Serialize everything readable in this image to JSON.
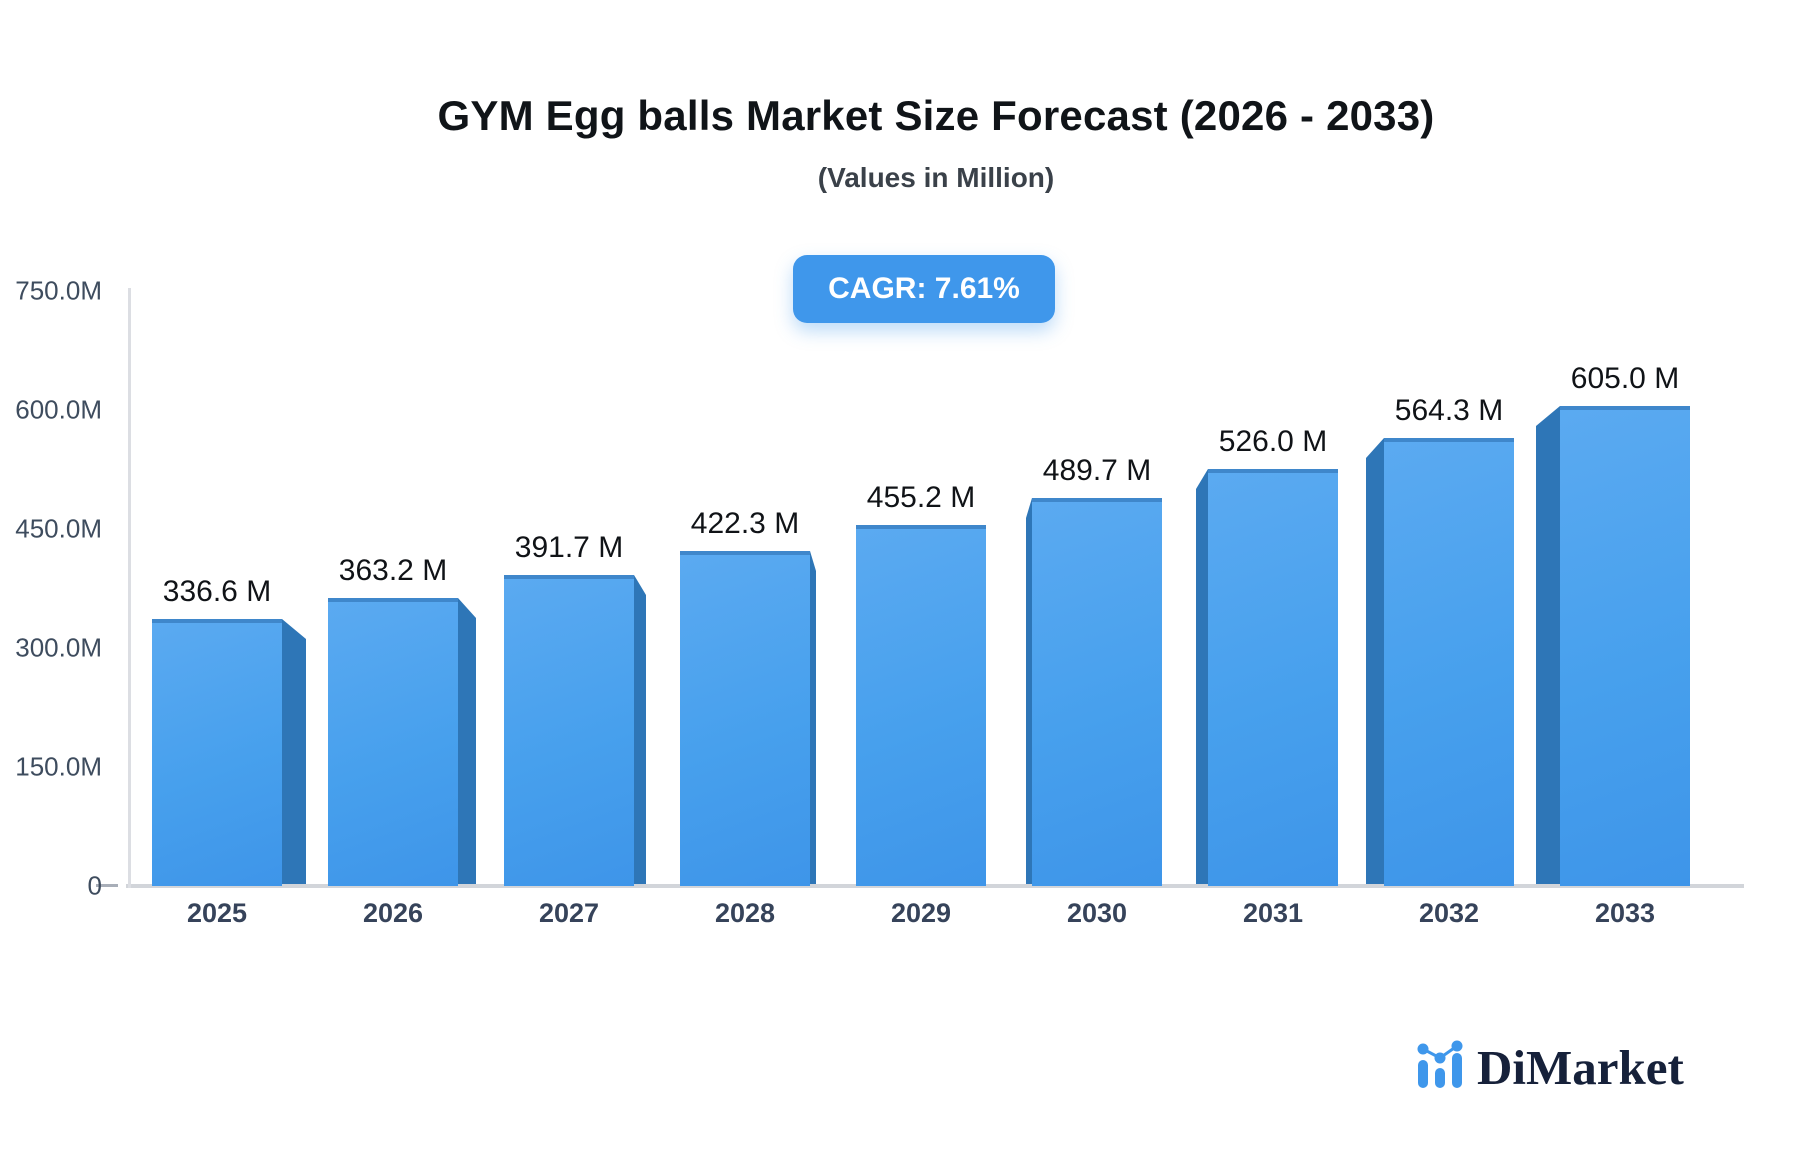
{
  "header": {
    "title": "GYM Egg balls Market Size Forecast (2026 - 2033)",
    "subtitle": "(Values in Million)",
    "cagr_badge": "CAGR: 7.61%"
  },
  "chart_data": {
    "type": "bar",
    "title": "GYM Egg balls Market Size Forecast (2026 - 2033)",
    "subtitle": "(Values in Million)",
    "annotation": "CAGR: 7.61%",
    "categories": [
      "2025",
      "2026",
      "2027",
      "2028",
      "2029",
      "2030",
      "2031",
      "2032",
      "2033"
    ],
    "values": [
      336.6,
      363.2,
      391.7,
      422.3,
      455.2,
      489.7,
      526.0,
      564.3,
      605.0
    ],
    "value_labels": [
      "336.6 M",
      "363.2 M",
      "391.7 M",
      "422.3 M",
      "455.2 M",
      "489.7 M",
      "526.0 M",
      "564.3 M",
      "605.0 M"
    ],
    "unit": "Million",
    "ylim": [
      0,
      750
    ],
    "y_ticks": [
      {
        "label": "750.0M",
        "value": 750
      },
      {
        "label": "600.0M",
        "value": 600
      },
      {
        "label": "450.0M",
        "value": 450
      },
      {
        "label": "300.0M",
        "value": 300
      },
      {
        "label": "150.0M",
        "value": 150
      },
      {
        "label": "0",
        "value": 0
      }
    ],
    "grid": false,
    "legend": "none",
    "style": "3d-perspective-bars"
  },
  "colors": {
    "bar_face": "#47a0ed",
    "bar_face_light": "#5baaf1",
    "bar_top_edge": "#3f87cb",
    "bar_side": "#2e76b7",
    "badge_background": "#3f97eb",
    "axis_line": "#d8dade",
    "tick_text": "#3e4c5e",
    "value_text": "#101317",
    "logo_navy": "#16213a",
    "logo_blue": "#3f97eb"
  },
  "logo": {
    "text": "DiMarket",
    "icon": "bar-chart-with-trend-dots-icon"
  }
}
